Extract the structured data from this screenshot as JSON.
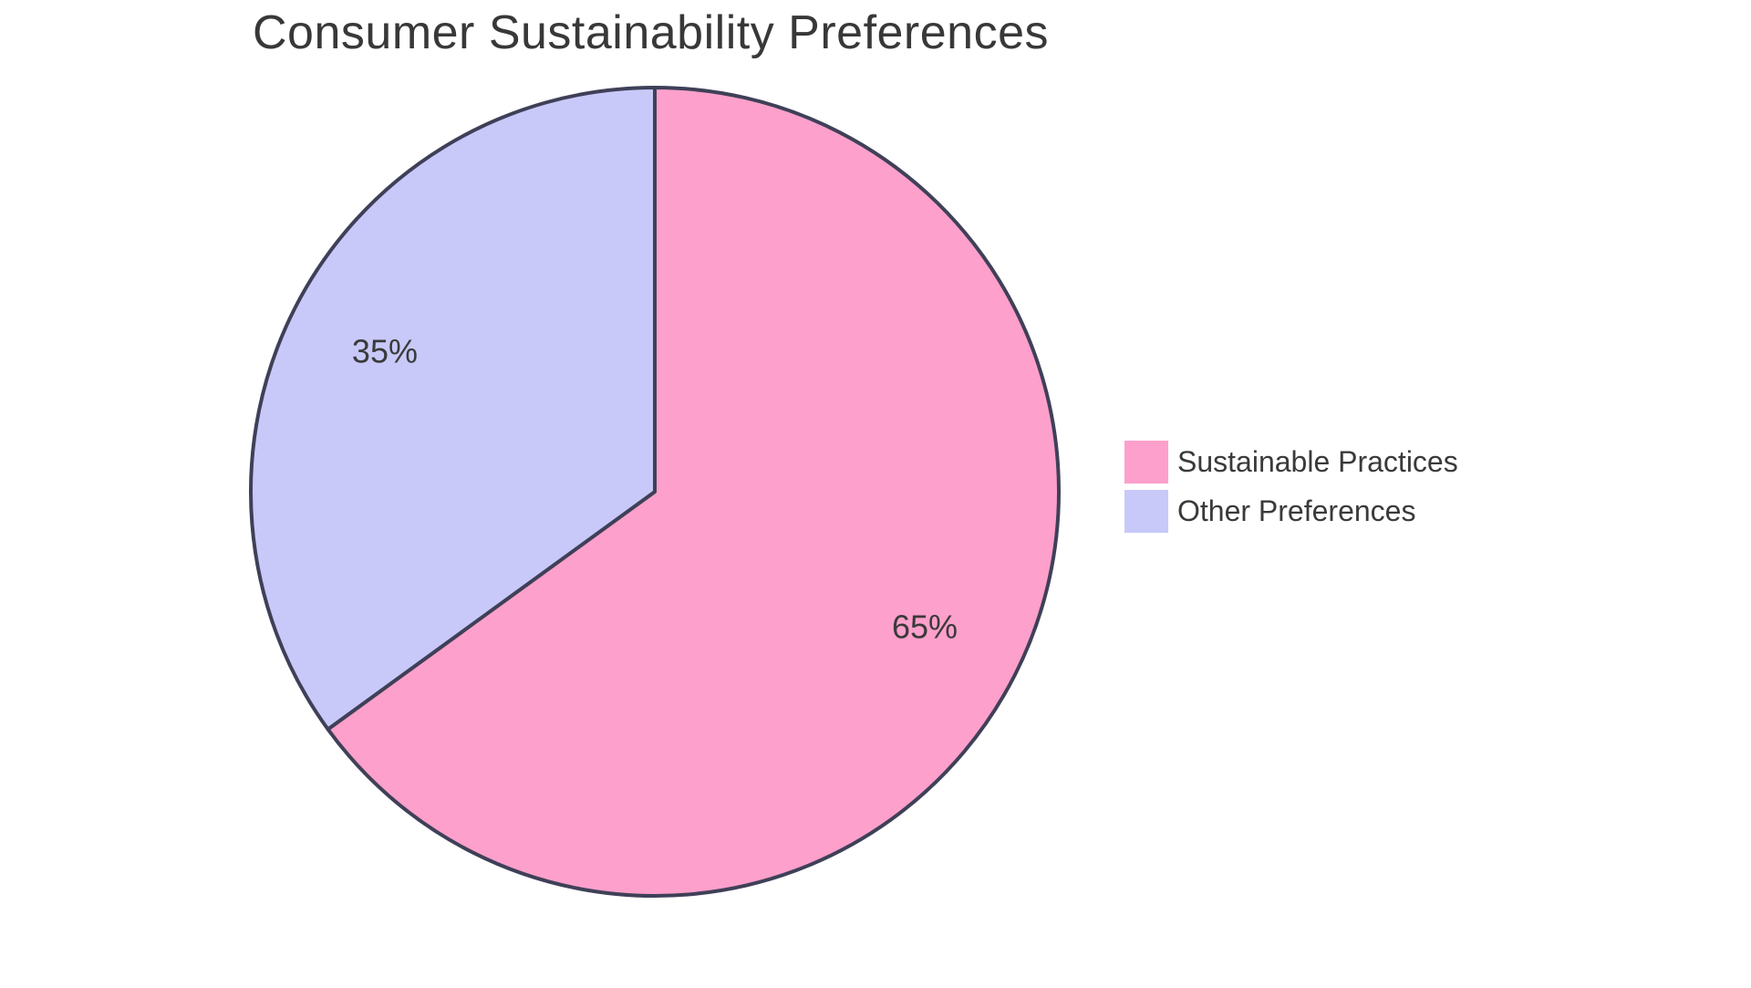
{
  "chart_data": {
    "type": "pie",
    "title": "Consumer Sustainability Preferences",
    "labels": [
      "Sustainable Practices",
      "Other Preferences"
    ],
    "values": [
      65,
      35
    ],
    "value_labels": [
      "65%",
      "35%"
    ],
    "colors": [
      "#FDA0CB",
      "#C8C9F9"
    ],
    "slice_border_color": "#3F4058",
    "slice_border_width": 4,
    "start_angle_deg": -90,
    "direction": "clockwise",
    "legend_position": "right",
    "text_color": "#3A3A3A",
    "background_color": "#FFFFFF"
  }
}
